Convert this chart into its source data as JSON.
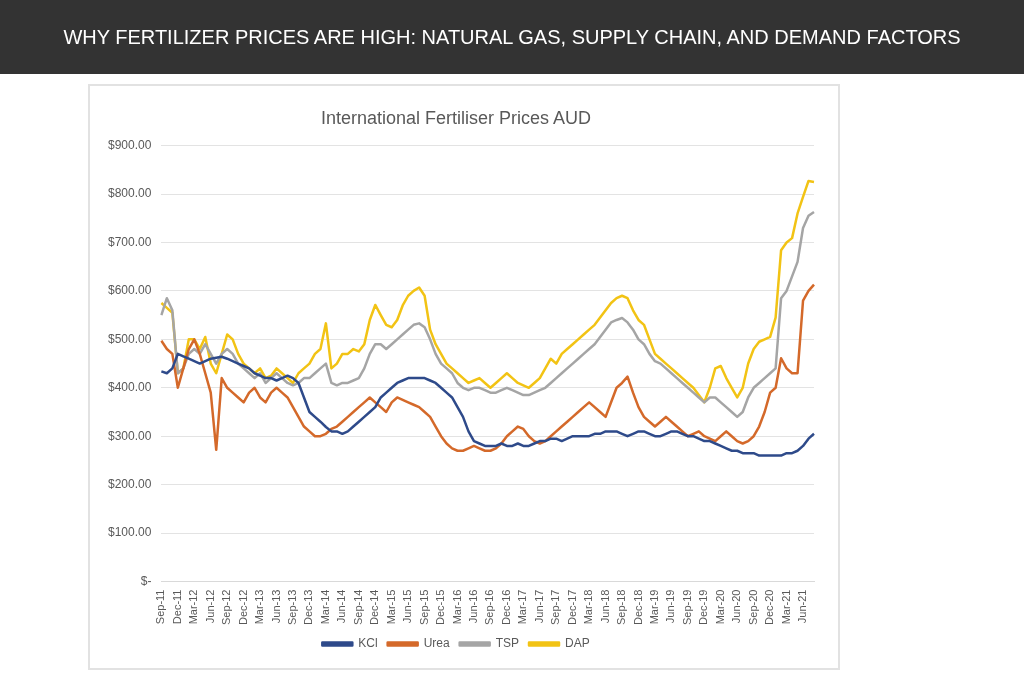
{
  "chart_data": {
    "type": "line",
    "title": "International Fertiliser Prices AUD",
    "annotations": [
      "WHY FERTILIZER PRICES ARE HIGH: NATURAL GAS, SUPPLY CHAIN, AND DEMAND FACTORS"
    ],
    "categories": [
      "Sep-11",
      null,
      null,
      "Dec-11",
      null,
      null,
      "Mar-12",
      null,
      null,
      "Jun-12",
      null,
      null,
      "Sep-12",
      null,
      null,
      "Dec-12",
      null,
      null,
      "Mar-13",
      null,
      null,
      "Jun-13",
      null,
      null,
      "Sep-13",
      null,
      null,
      "Dec-13",
      null,
      null,
      "Mar-14",
      null,
      null,
      "Jun-14",
      null,
      null,
      "Sep-14",
      null,
      null,
      "Dec-14",
      null,
      null,
      "Mar-15",
      null,
      null,
      "Jun-15",
      null,
      null,
      "Sep-15",
      null,
      null,
      "Dec-15",
      null,
      null,
      "Mar-16",
      null,
      null,
      "Jun-16",
      null,
      null,
      "Sep-16",
      null,
      null,
      "Dec-16",
      null,
      null,
      "Mar-17",
      null,
      null,
      "Jun-17",
      null,
      null,
      "Sep-17",
      null,
      null,
      "Dec-17",
      null,
      null,
      "Mar-18",
      null,
      null,
      "Jun-18",
      null,
      null,
      "Sep-18",
      null,
      null,
      "Dec-18",
      null,
      null,
      "Mar-19",
      null,
      null,
      "Jun-19",
      null,
      null,
      "Sep-19",
      null,
      null,
      "Dec-19",
      null,
      null,
      "Mar-20",
      null,
      null,
      "Jun-20",
      null,
      null,
      "Sep-20",
      null,
      null,
      "Dec-20",
      null,
      null,
      "Mar-21",
      null,
      null,
      "Jun-21",
      null,
      null
    ],
    "series": [
      {
        "name": "KCl",
        "color": "#2e4a8a",
        "values": [
          434,
          430,
          440,
          470,
          465,
          460,
          455,
          450,
          455,
          460,
          462,
          464,
          460,
          455,
          450,
          445,
          440,
          430,
          425,
          420,
          420,
          415,
          420,
          425,
          420,
          410,
          380,
          350,
          340,
          330,
          319,
          310,
          310,
          305,
          310,
          320,
          330,
          340,
          350,
          360,
          380,
          390,
          400,
          410,
          415,
          420,
          420,
          420,
          420,
          415,
          410,
          400,
          390,
          380,
          360,
          340,
          310,
          290,
          285,
          280,
          280,
          280,
          285,
          280,
          280,
          285,
          280,
          280,
          285,
          290,
          290,
          295,
          295,
          290,
          295,
          300,
          300,
          300,
          300,
          305,
          305,
          310,
          310,
          310,
          305,
          300,
          305,
          310,
          310,
          305,
          300,
          300,
          305,
          310,
          310,
          305,
          300,
          300,
          295,
          290,
          290,
          285,
          280,
          275,
          270,
          270,
          265,
          265,
          265,
          260,
          260,
          260,
          260,
          260,
          265,
          265,
          270,
          280,
          295,
          305
        ]
      },
      {
        "name": "Urea",
        "color": "#d4692a",
        "values": [
          497,
          480,
          470,
          400,
          440,
          480,
          500,
          470,
          430,
          390,
          272,
          420,
          400,
          390,
          380,
          370,
          390,
          400,
          380,
          370,
          390,
          400,
          390,
          380,
          360,
          340,
          320,
          310,
          300,
          300,
          305,
          315,
          320,
          330,
          340,
          350,
          360,
          370,
          380,
          370,
          360,
          350,
          370,
          380,
          375,
          370,
          365,
          360,
          350,
          340,
          320,
          300,
          285,
          275,
          270,
          270,
          275,
          280,
          275,
          270,
          270,
          275,
          285,
          300,
          310,
          320,
          315,
          300,
          290,
          285,
          290,
          300,
          310,
          320,
          330,
          340,
          350,
          360,
          370,
          360,
          350,
          340,
          370,
          400,
          410,
          423,
          390,
          360,
          340,
          330,
          320,
          330,
          340,
          330,
          320,
          310,
          300,
          305,
          310,
          300,
          295,
          290,
          300,
          310,
          300,
          290,
          285,
          290,
          300,
          320,
          350,
          390,
          400,
          461,
          440,
          430,
          430,
          580,
          600,
          613
        ]
      },
      {
        "name": "TSP",
        "color": "#a5a5a5",
        "values": [
          550,
          585,
          560,
          430,
          440,
          470,
          480,
          470,
          490,
          470,
          450,
          470,
          480,
          470,
          450,
          440,
          430,
          420,
          430,
          410,
          420,
          430,
          420,
          410,
          405,
          410,
          420,
          420,
          430,
          440,
          450,
          410,
          405,
          410,
          410,
          415,
          420,
          440,
          470,
          490,
          490,
          480,
          490,
          500,
          510,
          520,
          530,
          533,
          525,
          500,
          470,
          450,
          440,
          430,
          410,
          400,
          395,
          400,
          400,
          395,
          390,
          390,
          395,
          400,
          395,
          390,
          385,
          385,
          390,
          395,
          400,
          410,
          420,
          430,
          440,
          450,
          460,
          470,
          480,
          490,
          505,
          520,
          535,
          540,
          544,
          535,
          520,
          500,
          490,
          470,
          455,
          450,
          440,
          430,
          420,
          410,
          400,
          390,
          380,
          370,
          380,
          380,
          370,
          360,
          350,
          340,
          350,
          380,
          400,
          410,
          420,
          430,
          440,
          585,
          600,
          630,
          660,
          730,
          755,
          763
        ]
      },
      {
        "name": "DAP",
        "color": "#f2c314",
        "values": [
          575,
          565,
          555,
          430,
          440,
          500,
          500,
          480,
          505,
          450,
          430,
          470,
          510,
          500,
          470,
          450,
          440,
          430,
          440,
          420,
          425,
          440,
          430,
          420,
          410,
          430,
          440,
          450,
          470,
          480,
          533,
          440,
          450,
          470,
          470,
          480,
          475,
          490,
          540,
          571,
          550,
          530,
          525,
          540,
          570,
          590,
          600,
          607,
          590,
          520,
          490,
          470,
          450,
          440,
          430,
          420,
          410,
          415,
          420,
          410,
          400,
          410,
          420,
          430,
          420,
          410,
          405,
          400,
          410,
          420,
          440,
          460,
          450,
          470,
          480,
          490,
          500,
          510,
          520,
          530,
          545,
          560,
          575,
          585,
          590,
          585,
          560,
          540,
          530,
          500,
          470,
          460,
          450,
          440,
          430,
          420,
          410,
          400,
          385,
          370,
          400,
          440,
          445,
          420,
          400,
          380,
          400,
          450,
          480,
          495,
          500,
          505,
          545,
          684,
          700,
          709,
          760,
          794,
          827,
          825
        ]
      }
    ],
    "ylim": [
      0,
      900
    ],
    "yticks": [
      {
        "value": 0,
        "label": "$-"
      },
      {
        "value": 100,
        "label": "$100.00"
      },
      {
        "value": 200,
        "label": "$200.00"
      },
      {
        "value": 300,
        "label": "$300.00"
      },
      {
        "value": 400,
        "label": "$400.00"
      },
      {
        "value": 500,
        "label": "$500.00"
      },
      {
        "value": 600,
        "label": "$600.00"
      },
      {
        "value": 700,
        "label": "$700.00"
      },
      {
        "value": 800,
        "label": "$800.00"
      },
      {
        "value": 900,
        "label": "$900.00"
      }
    ],
    "grid": "y",
    "legend": "bottom",
    "marker": "none",
    "line_style": "solid"
  }
}
